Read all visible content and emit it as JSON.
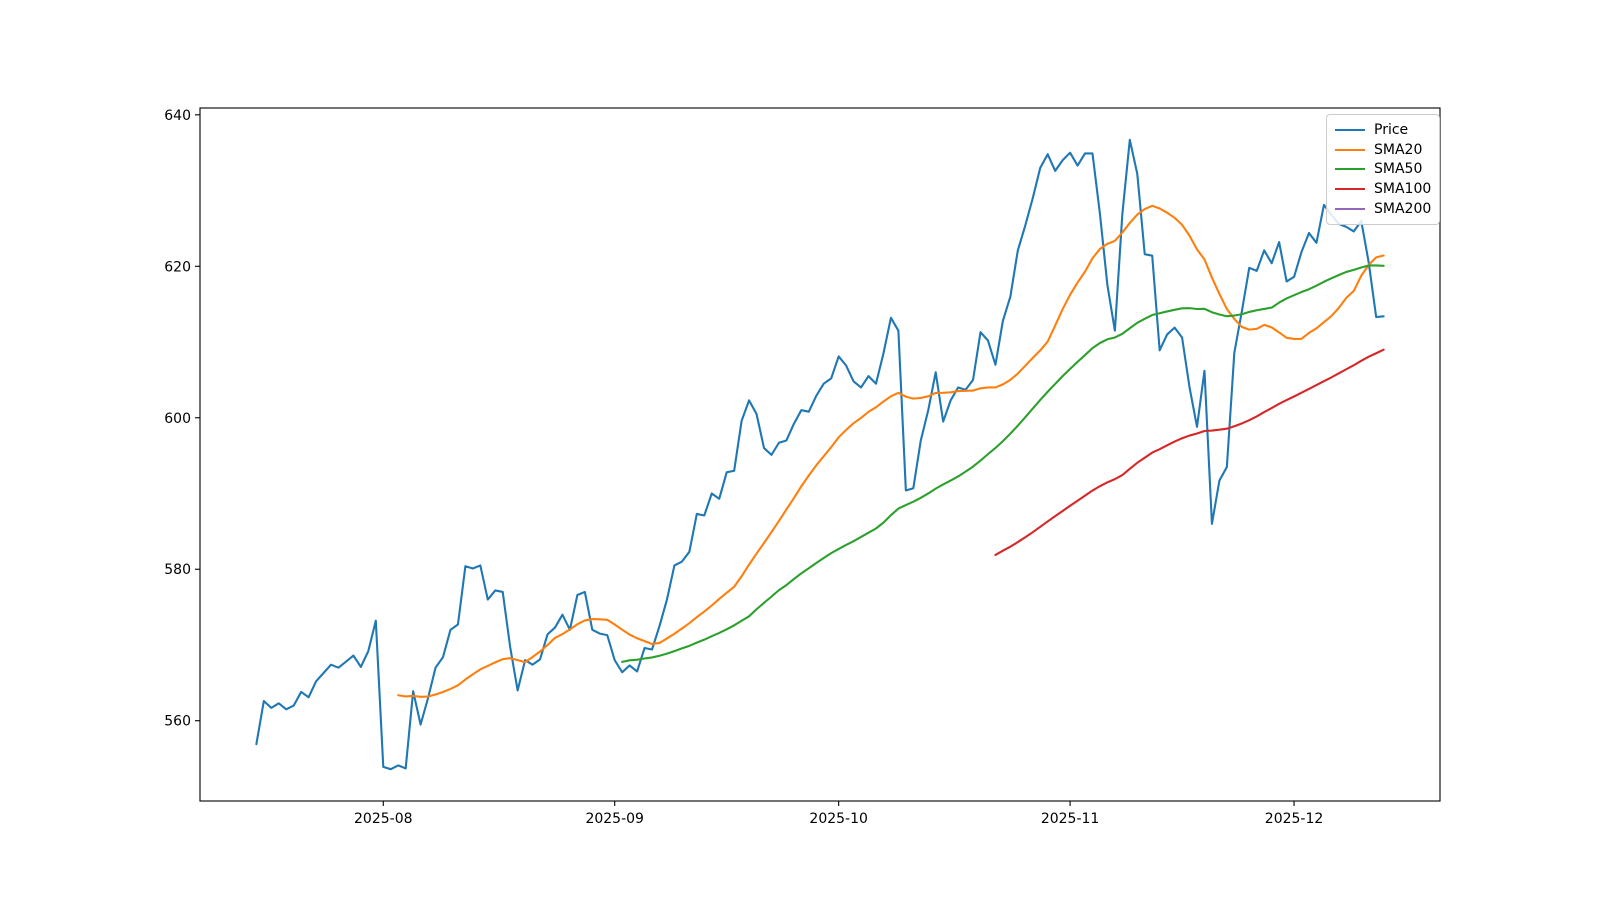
{
  "chart_data": {
    "type": "line",
    "title": "",
    "xlabel": "",
    "ylabel": "",
    "grid": false,
    "legend_position": "upper right",
    "x_ticks": [
      {
        "label": "2025-08",
        "day": 17
      },
      {
        "label": "2025-09",
        "day": 48
      },
      {
        "label": "2025-10",
        "day": 78
      },
      {
        "label": "2025-11",
        "day": 109
      },
      {
        "label": "2025-12",
        "day": 139
      }
    ],
    "y_ticks": [
      560,
      580,
      600,
      620,
      640
    ],
    "xlim": [
      -7.55,
      158.55
    ],
    "ylim": [
      549.4,
      640.9
    ],
    "series": [
      {
        "name": "Price",
        "color": "#1f77b4",
        "kind": "raw"
      },
      {
        "name": "SMA20",
        "color": "#ff7f0e",
        "kind": "sma",
        "window": 20
      },
      {
        "name": "SMA50",
        "color": "#2ca02c",
        "kind": "sma",
        "window": 50
      },
      {
        "name": "SMA100",
        "color": "#d62728",
        "kind": "sma",
        "window": 100
      },
      {
        "name": "SMA200",
        "color": "#9467bd",
        "kind": "sma",
        "window": 200
      }
    ],
    "price_values": [
      556.9,
      562.6,
      561.7,
      562.3,
      561.5,
      562.0,
      563.8,
      563.1,
      565.2,
      566.3,
      567.4,
      567.0,
      567.8,
      568.6,
      567.1,
      569.2,
      573.2,
      553.9,
      553.6,
      554.1,
      553.7,
      563.9,
      559.5,
      563.0,
      567.0,
      568.4,
      572.0,
      572.7,
      580.4,
      580.1,
      580.5,
      576.0,
      577.2,
      577.0,
      569.7,
      564.0,
      568.0,
      567.4,
      568.1,
      571.4,
      572.3,
      574.0,
      572.0,
      576.6,
      577.0,
      572.0,
      571.5,
      571.3,
      568.0,
      566.4,
      567.3,
      566.5,
      569.6,
      569.4,
      572.5,
      576.0,
      580.5,
      581.0,
      582.3,
      587.3,
      587.1,
      590.0,
      589.3,
      592.8,
      593.0,
      599.6,
      602.3,
      600.5,
      596.0,
      595.1,
      596.7,
      597.0,
      599.2,
      601.0,
      600.8,
      602.9,
      604.5,
      605.2,
      608.1,
      606.9,
      604.8,
      604.0,
      605.5,
      604.5,
      608.5,
      613.2,
      611.5,
      590.4,
      590.7,
      597.0,
      601.0,
      606.0,
      599.5,
      602.3,
      604.0,
      603.7,
      605.0,
      611.3,
      610.2,
      607.0,
      612.8,
      616.0,
      622.1,
      625.4,
      629.0,
      633.0,
      634.8,
      632.6,
      634.0,
      635.0,
      633.3,
      634.9,
      634.9,
      626.9,
      617.5,
      611.5,
      626.9,
      636.7,
      632.2,
      621.6,
      621.4,
      608.9,
      611.0,
      611.9,
      610.6,
      604.0,
      598.8,
      606.2,
      586.0,
      591.7,
      593.5,
      608.6,
      614.0,
      619.8,
      619.4,
      622.1,
      620.4,
      623.2,
      618.0,
      618.6,
      621.9,
      624.4,
      623.1,
      628.1,
      626.8,
      625.6,
      625.2,
      624.6,
      626.0,
      620.5,
      613.3,
      613.4
    ],
    "legend_entries": [
      {
        "label": "Price",
        "color": "#1f77b4"
      },
      {
        "label": "SMA20",
        "color": "#ff7f0e"
      },
      {
        "label": "SMA50",
        "color": "#2ca02c"
      },
      {
        "label": "SMA100",
        "color": "#d62728"
      },
      {
        "label": "SMA200",
        "color": "#9467bd"
      }
    ]
  }
}
